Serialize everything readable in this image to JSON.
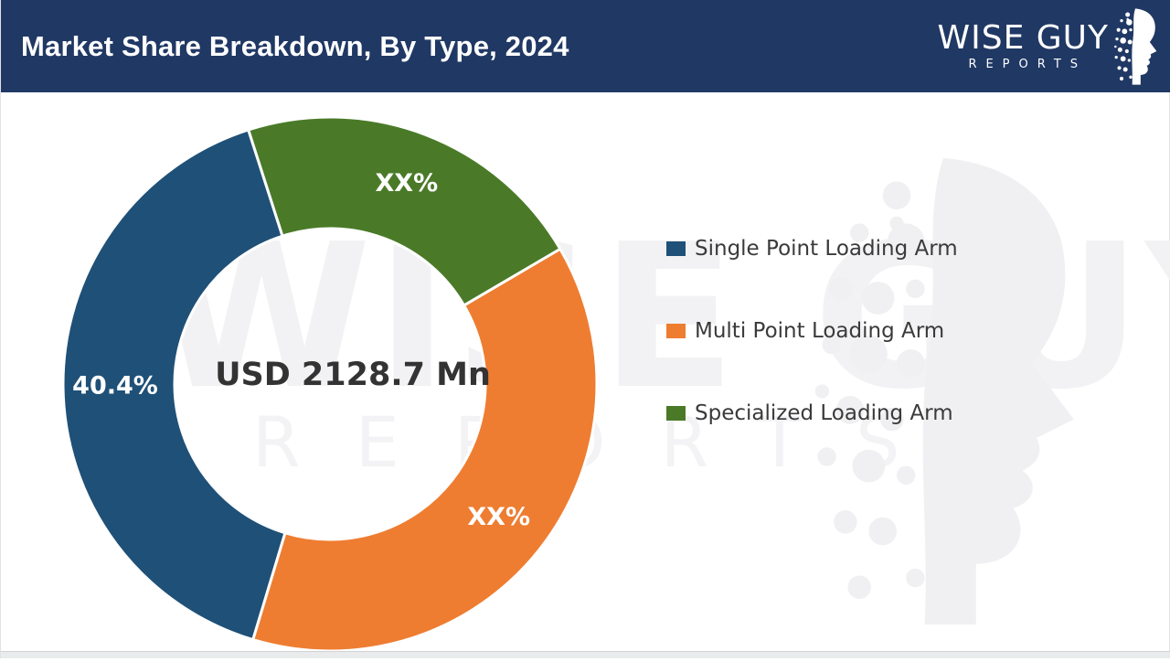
{
  "header": {
    "title": "Market Share Breakdown, By Type, 2024",
    "logo_line1": "WISE GUY",
    "logo_line2": "REPORTS"
  },
  "watermark": {
    "line1": "WISE GUY",
    "line2": "REPORTS"
  },
  "chart_data": {
    "type": "pie",
    "subtype": "donut",
    "title": "Market Share Breakdown, By Type, 2024",
    "center_label": "USD 2128.7 Mn",
    "start_angle_deg": 107.8,
    "direction": "counterclockwise",
    "legend_position": "right",
    "segments": [
      {
        "name": "Single Point Loading Arm",
        "label": "40.4%",
        "value_pct": 40.4,
        "color": "#1F5077"
      },
      {
        "name": "Multi Point Loading Arm",
        "label": "XX%",
        "value_pct": 38.1,
        "color": "#EE7D31"
      },
      {
        "name": "Specialized Loading Arm",
        "label": "XX%",
        "value_pct": 21.5,
        "color": "#4A7A28"
      }
    ]
  },
  "colors": {
    "header_bg": "#203864",
    "center_text": "#333333",
    "legend_text": "#3A3A3A",
    "separator": "#FFFFFF"
  }
}
